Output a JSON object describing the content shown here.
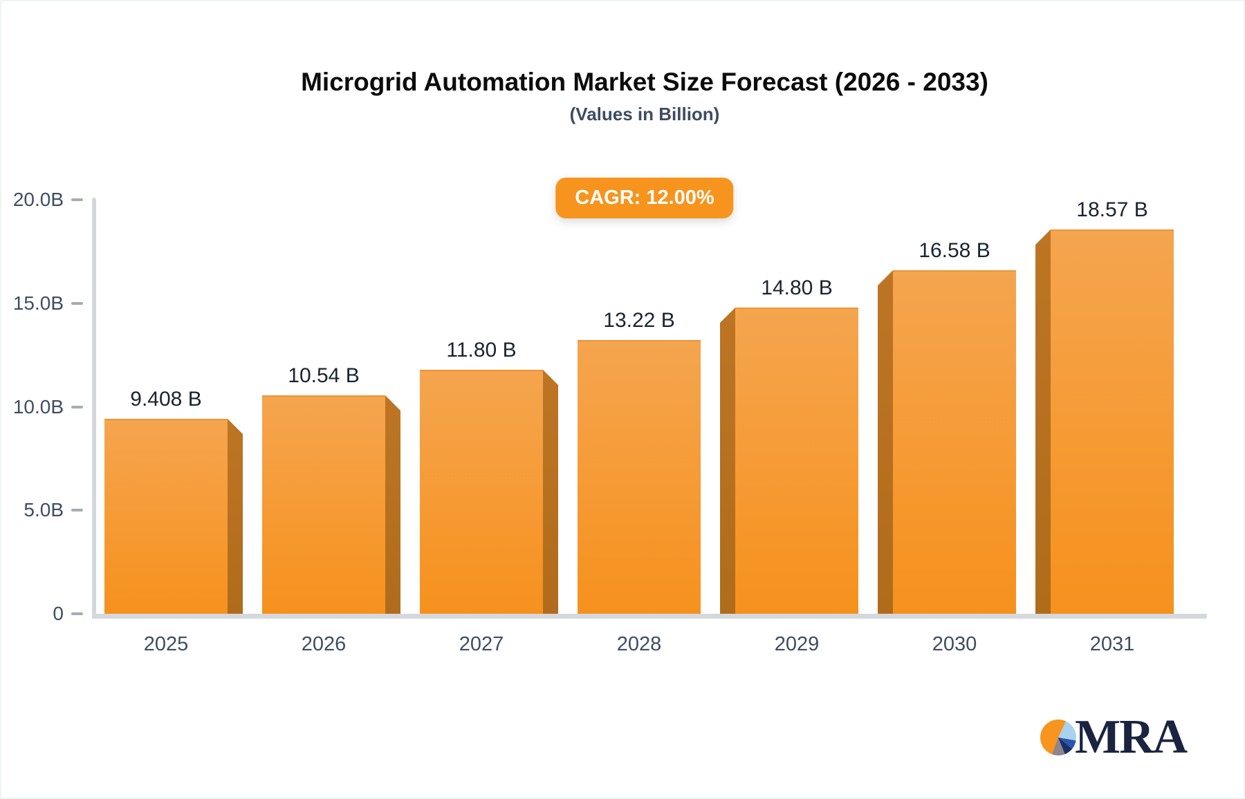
{
  "header": {
    "title": "Microgrid Automation Market Size Forecast (2026 - 2033)",
    "subtitle": "(Values in Billion)"
  },
  "badge": {
    "label": "CAGR: 12.00%"
  },
  "chart_data": {
    "type": "bar",
    "title": "Microgrid Automation Market Size Forecast (2026 - 2033)",
    "subtitle": "(Values in Billion)",
    "annotation": "CAGR: 12.00%",
    "categories": [
      "2025",
      "2026",
      "2027",
      "2028",
      "2029",
      "2030",
      "2031"
    ],
    "values": [
      9.408,
      10.54,
      11.8,
      13.22,
      14.8,
      16.58,
      18.57
    ],
    "value_labels": [
      "9.408 B",
      "10.54 B",
      "11.80 B",
      "13.22 B",
      "14.80 B",
      "16.58 B",
      "18.57 B"
    ],
    "xlabel": "",
    "ylabel": "",
    "ylim": [
      0,
      20
    ],
    "yticks": [
      {
        "value": 0,
        "label": "0"
      },
      {
        "value": 5,
        "label": "5.0B"
      },
      {
        "value": 10,
        "label": "10.0B"
      },
      {
        "value": 15,
        "label": "15.0B"
      },
      {
        "value": 20,
        "label": "20.0B"
      }
    ],
    "grid": false,
    "legend": false,
    "colors": {
      "bar_top": "#f5a54f",
      "bar_bottom": "#f6911d",
      "bar_side": "#b87020",
      "badge_bg": "#f7941e",
      "badge_text": "#ffffff",
      "axis_line": "#d5d7db",
      "tick": "#a7acb4",
      "axis_text": "#3e4d62",
      "value_text": "#1a2330",
      "title_text": "#0c0c0c",
      "subtitle_text": "#3d4b61"
    }
  },
  "logo": {
    "text": "MRA",
    "text_color": "#1a2440",
    "pie_slices": [
      {
        "color": "#f7951f",
        "start": 0,
        "end": 25
      },
      {
        "color": "#a9d2ee",
        "start": 25,
        "end": 100
      },
      {
        "color": "#2c56ac",
        "start": 100,
        "end": 130
      },
      {
        "color": "#1b2f66",
        "start": 130,
        "end": 158
      },
      {
        "color": "#8f858e",
        "start": 158,
        "end": 200
      },
      {
        "color": "#f7951f",
        "start": 200,
        "end": 360
      }
    ]
  }
}
